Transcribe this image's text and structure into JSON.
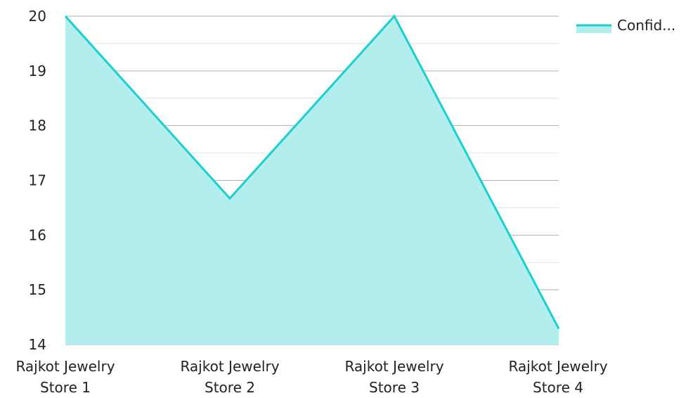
{
  "chart_data": {
    "type": "area",
    "categories": [
      [
        "Rajkot Jewelry",
        "Store 1"
      ],
      [
        "Rajkot Jewelry",
        "Store 2"
      ],
      [
        "Rajkot Jewelry",
        "Store 3"
      ],
      [
        "Rajkot Jewelry",
        "Store 4"
      ]
    ],
    "series": [
      {
        "name": "Confid...",
        "values": [
          20,
          16.67,
          20,
          14.29
        ],
        "line_color": "#1ccfcf",
        "fill_color": "#b3eeee"
      }
    ],
    "ylim": [
      14,
      20
    ],
    "y_ticks": [
      14,
      15,
      16,
      17,
      18,
      19,
      20
    ],
    "major_grid_color": "#b0b0b0",
    "minor_grid_color": "#e2e2e2",
    "grid": true,
    "legend_position": "top-right",
    "title": "",
    "xlabel": "",
    "ylabel": ""
  }
}
